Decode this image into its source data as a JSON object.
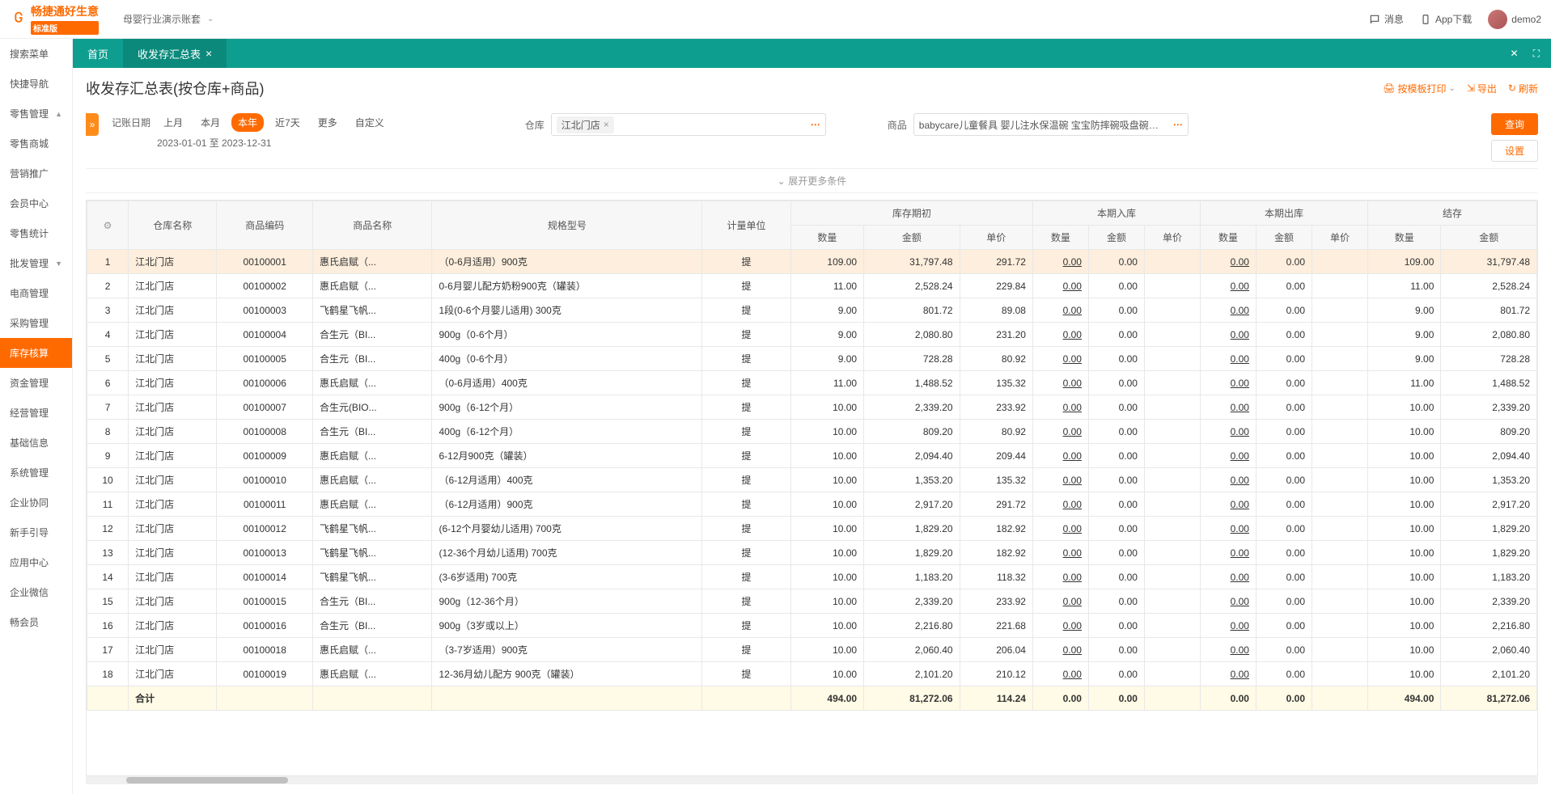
{
  "brand": {
    "name": "畅捷通好生意",
    "edition": "标准版"
  },
  "org": "母婴行业演示账套",
  "topbar": {
    "msg": "消息",
    "download": "App下载",
    "user": "demo2"
  },
  "sidebar": [
    {
      "label": "搜索菜单"
    },
    {
      "label": "快捷导航"
    },
    {
      "label": "零售管理",
      "arrow": "▲"
    },
    {
      "label": "零售商城"
    },
    {
      "label": "营销推广"
    },
    {
      "label": "会员中心"
    },
    {
      "label": "零售统计"
    },
    {
      "label": "批发管理",
      "arrow": "▼"
    },
    {
      "label": "电商管理"
    },
    {
      "label": "采购管理"
    },
    {
      "label": "库存核算",
      "active": true
    },
    {
      "label": "资金管理"
    },
    {
      "label": "经营管理"
    },
    {
      "label": "基础信息"
    },
    {
      "label": "系统管理"
    },
    {
      "label": "企业协同"
    },
    {
      "label": "新手引导"
    },
    {
      "label": "应用中心"
    },
    {
      "label": "企业微信"
    },
    {
      "label": "畅会员"
    }
  ],
  "tabs": {
    "home": "首页",
    "current": "收发存汇总表"
  },
  "page": {
    "title": "收发存汇总表(按仓库+商品)",
    "print": "按模板打印",
    "export": "导出",
    "refresh": "刷新",
    "query": "查询",
    "settings": "设置",
    "expand": "展开更多条件"
  },
  "filters": {
    "dateLabel": "记账日期",
    "chips": [
      "上月",
      "本月",
      "本年",
      "近7天",
      "更多",
      "自定义"
    ],
    "activeChip": "本年",
    "range": "2023-01-01 至 2023-12-31",
    "warehouseLabel": "仓库",
    "warehouseTag": "江北门店",
    "productLabel": "商品",
    "productText": "babycare儿童餐具 婴儿注水保温碗 宝宝防摔碗吸盘碗辅食碗勺套装 雀湖绿 | ..."
  },
  "table": {
    "headers": {
      "gear": "⚙",
      "warehouse": "仓库名称",
      "code": "商品编码",
      "name": "商品名称",
      "spec": "规格型号",
      "unit": "计量单位",
      "opening": "库存期初",
      "inbound": "本期入库",
      "outbound": "本期出库",
      "balance": "结存",
      "qty": "数量",
      "amt": "金额",
      "price": "单价"
    },
    "rows": [
      {
        "n": 1,
        "wh": "江北门店",
        "code": "00100001",
        "name": "惠氏启赋（...",
        "spec": "（0-6月适用）900克",
        "unit": "提",
        "oq": "109.00",
        "oa": "31,797.48",
        "op": "291.72",
        "iq": "0.00",
        "ia": "0.00",
        "ip": "",
        "xq": "0.00",
        "xa": "0.00",
        "xp": "",
        "bq": "109.00",
        "ba": "31,797.48"
      },
      {
        "n": 2,
        "wh": "江北门店",
        "code": "00100002",
        "name": "惠氏启赋（...",
        "spec": "0-6月婴儿配方奶粉900克（罐装）",
        "unit": "提",
        "oq": "11.00",
        "oa": "2,528.24",
        "op": "229.84",
        "iq": "0.00",
        "ia": "0.00",
        "ip": "",
        "xq": "0.00",
        "xa": "0.00",
        "xp": "",
        "bq": "11.00",
        "ba": "2,528.24"
      },
      {
        "n": 3,
        "wh": "江北门店",
        "code": "00100003",
        "name": "飞鹤星飞帆...",
        "spec": "1段(0-6个月婴儿适用) 300克",
        "unit": "提",
        "oq": "9.00",
        "oa": "801.72",
        "op": "89.08",
        "iq": "0.00",
        "ia": "0.00",
        "ip": "",
        "xq": "0.00",
        "xa": "0.00",
        "xp": "",
        "bq": "9.00",
        "ba": "801.72"
      },
      {
        "n": 4,
        "wh": "江北门店",
        "code": "00100004",
        "name": "合生元（BI...",
        "spec": "900g（0-6个月）",
        "unit": "提",
        "oq": "9.00",
        "oa": "2,080.80",
        "op": "231.20",
        "iq": "0.00",
        "ia": "0.00",
        "ip": "",
        "xq": "0.00",
        "xa": "0.00",
        "xp": "",
        "bq": "9.00",
        "ba": "2,080.80"
      },
      {
        "n": 5,
        "wh": "江北门店",
        "code": "00100005",
        "name": "合生元（BI...",
        "spec": "400g（0-6个月）",
        "unit": "提",
        "oq": "9.00",
        "oa": "728.28",
        "op": "80.92",
        "iq": "0.00",
        "ia": "0.00",
        "ip": "",
        "xq": "0.00",
        "xa": "0.00",
        "xp": "",
        "bq": "9.00",
        "ba": "728.28"
      },
      {
        "n": 6,
        "wh": "江北门店",
        "code": "00100006",
        "name": "惠氏启赋（...",
        "spec": "（0-6月适用）400克",
        "unit": "提",
        "oq": "11.00",
        "oa": "1,488.52",
        "op": "135.32",
        "iq": "0.00",
        "ia": "0.00",
        "ip": "",
        "xq": "0.00",
        "xa": "0.00",
        "xp": "",
        "bq": "11.00",
        "ba": "1,488.52"
      },
      {
        "n": 7,
        "wh": "江北门店",
        "code": "00100007",
        "name": "合生元(BIO...",
        "spec": "900g（6-12个月）",
        "unit": "提",
        "oq": "10.00",
        "oa": "2,339.20",
        "op": "233.92",
        "iq": "0.00",
        "ia": "0.00",
        "ip": "",
        "xq": "0.00",
        "xa": "0.00",
        "xp": "",
        "bq": "10.00",
        "ba": "2,339.20"
      },
      {
        "n": 8,
        "wh": "江北门店",
        "code": "00100008",
        "name": "合生元（BI...",
        "spec": "400g（6-12个月）",
        "unit": "提",
        "oq": "10.00",
        "oa": "809.20",
        "op": "80.92",
        "iq": "0.00",
        "ia": "0.00",
        "ip": "",
        "xq": "0.00",
        "xa": "0.00",
        "xp": "",
        "bq": "10.00",
        "ba": "809.20"
      },
      {
        "n": 9,
        "wh": "江北门店",
        "code": "00100009",
        "name": "惠氏启赋（...",
        "spec": "6-12月900克（罐装）",
        "unit": "提",
        "oq": "10.00",
        "oa": "2,094.40",
        "op": "209.44",
        "iq": "0.00",
        "ia": "0.00",
        "ip": "",
        "xq": "0.00",
        "xa": "0.00",
        "xp": "",
        "bq": "10.00",
        "ba": "2,094.40"
      },
      {
        "n": 10,
        "wh": "江北门店",
        "code": "00100010",
        "name": "惠氏启赋（...",
        "spec": "（6-12月适用）400克",
        "unit": "提",
        "oq": "10.00",
        "oa": "1,353.20",
        "op": "135.32",
        "iq": "0.00",
        "ia": "0.00",
        "ip": "",
        "xq": "0.00",
        "xa": "0.00",
        "xp": "",
        "bq": "10.00",
        "ba": "1,353.20"
      },
      {
        "n": 11,
        "wh": "江北门店",
        "code": "00100011",
        "name": "惠氏启赋（...",
        "spec": "（6-12月适用）900克",
        "unit": "提",
        "oq": "10.00",
        "oa": "2,917.20",
        "op": "291.72",
        "iq": "0.00",
        "ia": "0.00",
        "ip": "",
        "xq": "0.00",
        "xa": "0.00",
        "xp": "",
        "bq": "10.00",
        "ba": "2,917.20"
      },
      {
        "n": 12,
        "wh": "江北门店",
        "code": "00100012",
        "name": "飞鹤星飞帆...",
        "spec": "(6-12个月婴幼儿适用) 700克",
        "unit": "提",
        "oq": "10.00",
        "oa": "1,829.20",
        "op": "182.92",
        "iq": "0.00",
        "ia": "0.00",
        "ip": "",
        "xq": "0.00",
        "xa": "0.00",
        "xp": "",
        "bq": "10.00",
        "ba": "1,829.20"
      },
      {
        "n": 13,
        "wh": "江北门店",
        "code": "00100013",
        "name": "飞鹤星飞帆...",
        "spec": "(12-36个月幼儿适用) 700克",
        "unit": "提",
        "oq": "10.00",
        "oa": "1,829.20",
        "op": "182.92",
        "iq": "0.00",
        "ia": "0.00",
        "ip": "",
        "xq": "0.00",
        "xa": "0.00",
        "xp": "",
        "bq": "10.00",
        "ba": "1,829.20"
      },
      {
        "n": 14,
        "wh": "江北门店",
        "code": "00100014",
        "name": "飞鹤星飞帆...",
        "spec": "(3-6岁适用) 700克",
        "unit": "提",
        "oq": "10.00",
        "oa": "1,183.20",
        "op": "118.32",
        "iq": "0.00",
        "ia": "0.00",
        "ip": "",
        "xq": "0.00",
        "xa": "0.00",
        "xp": "",
        "bq": "10.00",
        "ba": "1,183.20"
      },
      {
        "n": 15,
        "wh": "江北门店",
        "code": "00100015",
        "name": "合生元（BI...",
        "spec": "900g（12-36个月）",
        "unit": "提",
        "oq": "10.00",
        "oa": "2,339.20",
        "op": "233.92",
        "iq": "0.00",
        "ia": "0.00",
        "ip": "",
        "xq": "0.00",
        "xa": "0.00",
        "xp": "",
        "bq": "10.00",
        "ba": "2,339.20"
      },
      {
        "n": 16,
        "wh": "江北门店",
        "code": "00100016",
        "name": "合生元（BI...",
        "spec": "900g（3岁或以上）",
        "unit": "提",
        "oq": "10.00",
        "oa": "2,216.80",
        "op": "221.68",
        "iq": "0.00",
        "ia": "0.00",
        "ip": "",
        "xq": "0.00",
        "xa": "0.00",
        "xp": "",
        "bq": "10.00",
        "ba": "2,216.80"
      },
      {
        "n": 17,
        "wh": "江北门店",
        "code": "00100018",
        "name": "惠氏启赋（...",
        "spec": "（3-7岁适用）900克",
        "unit": "提",
        "oq": "10.00",
        "oa": "2,060.40",
        "op": "206.04",
        "iq": "0.00",
        "ia": "0.00",
        "ip": "",
        "xq": "0.00",
        "xa": "0.00",
        "xp": "",
        "bq": "10.00",
        "ba": "2,060.40"
      },
      {
        "n": 18,
        "wh": "江北门店",
        "code": "00100019",
        "name": "惠氏启赋（...",
        "spec": "12-36月幼儿配方 900克（罐装）",
        "unit": "提",
        "oq": "10.00",
        "oa": "2,101.20",
        "op": "210.12",
        "iq": "0.00",
        "ia": "0.00",
        "ip": "",
        "xq": "0.00",
        "xa": "0.00",
        "xp": "",
        "bq": "10.00",
        "ba": "2,101.20"
      }
    ],
    "totals": {
      "label": "合计",
      "oq": "494.00",
      "oa": "81,272.06",
      "op": "114.24",
      "iq": "0.00",
      "ia": "0.00",
      "xq": "0.00",
      "xa": "0.00",
      "bq": "494.00",
      "ba": "81,272.06"
    }
  }
}
